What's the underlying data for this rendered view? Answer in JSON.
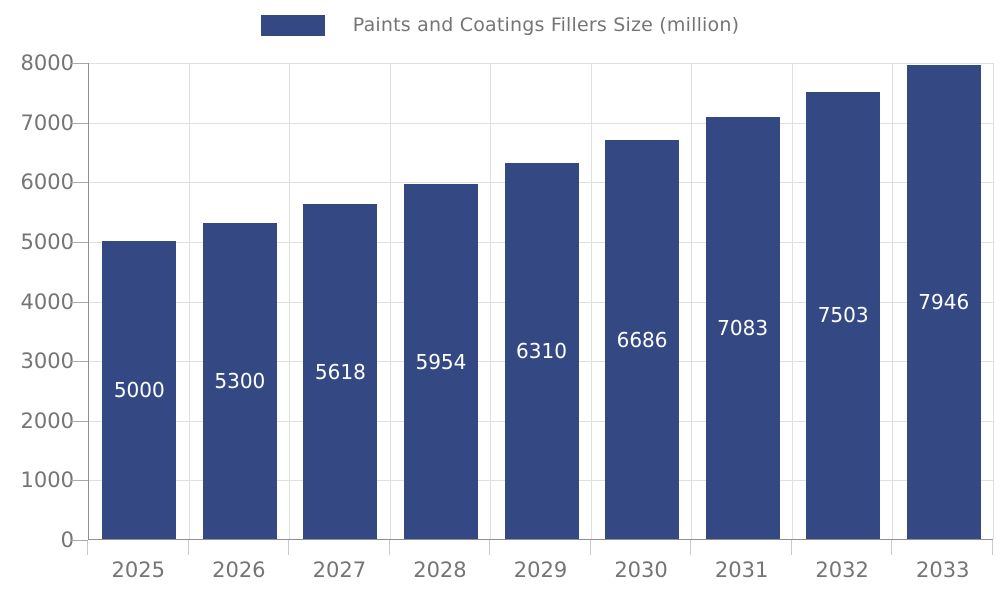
{
  "chart_data": {
    "type": "bar",
    "title": "Paints and Coatings Fillers Size (million)",
    "legend": {
      "label": "Paints and Coatings Fillers Size (million)",
      "position": "top-center"
    },
    "categories": [
      "2025",
      "2026",
      "2027",
      "2028",
      "2029",
      "2030",
      "2031",
      "2032",
      "2033"
    ],
    "values": [
      5000,
      5300,
      5618,
      5954,
      6310,
      6686,
      7083,
      7503,
      7946
    ],
    "xlabel": "",
    "ylabel": "",
    "ylim": [
      0,
      8000
    ],
    "y_ticks": [
      0,
      1000,
      2000,
      3000,
      4000,
      5000,
      6000,
      7000,
      8000
    ],
    "grid": "horizontal and vertical gridlines on",
    "value_labels": "inside bars, vertically centered, white",
    "colors": {
      "bar": "#344883",
      "bar_label_text": "#ffffff",
      "axis_text": "#757575",
      "legend_text": "#757575",
      "gridline": "#e0e0e0",
      "spine": "#8f8f8f",
      "background": "#ffffff"
    }
  }
}
